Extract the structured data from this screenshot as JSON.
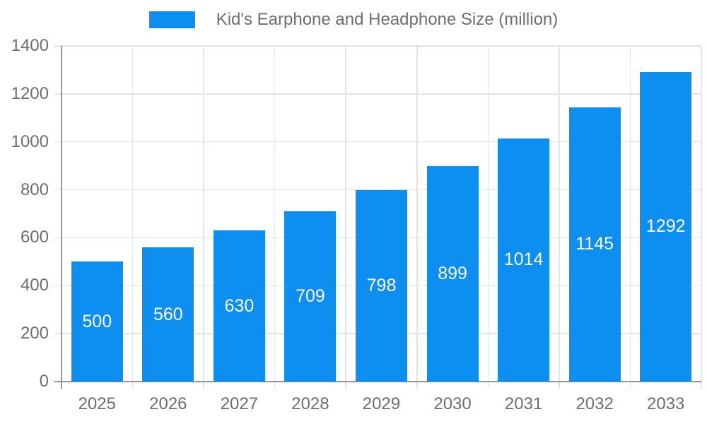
{
  "chart_data": {
    "type": "bar",
    "title": "Kid's Earphone and Headphone Size (million)",
    "legend": {
      "label": "Kid's Earphone and Headphone Size (million)",
      "position": "top-center",
      "marker": "rectangle"
    },
    "categories": [
      "2025",
      "2026",
      "2027",
      "2028",
      "2029",
      "2030",
      "2031",
      "2032",
      "2033"
    ],
    "values": [
      500,
      560,
      630,
      709,
      798,
      899,
      1014,
      1145,
      1292
    ],
    "value_labels_shown": true,
    "xlabel": "",
    "ylabel": "",
    "ylim": [
      0,
      1400
    ],
    "y_ticks": [
      0,
      200,
      400,
      600,
      800,
      1000,
      1200,
      1400
    ],
    "grid": true,
    "colors": {
      "bar": "#0d8ff2",
      "value_label": "#ffffff",
      "axis_text": "#6e6e6e",
      "gridline": "#e3e3e3",
      "axis_line": "#969696",
      "background": "#ffffff"
    }
  }
}
